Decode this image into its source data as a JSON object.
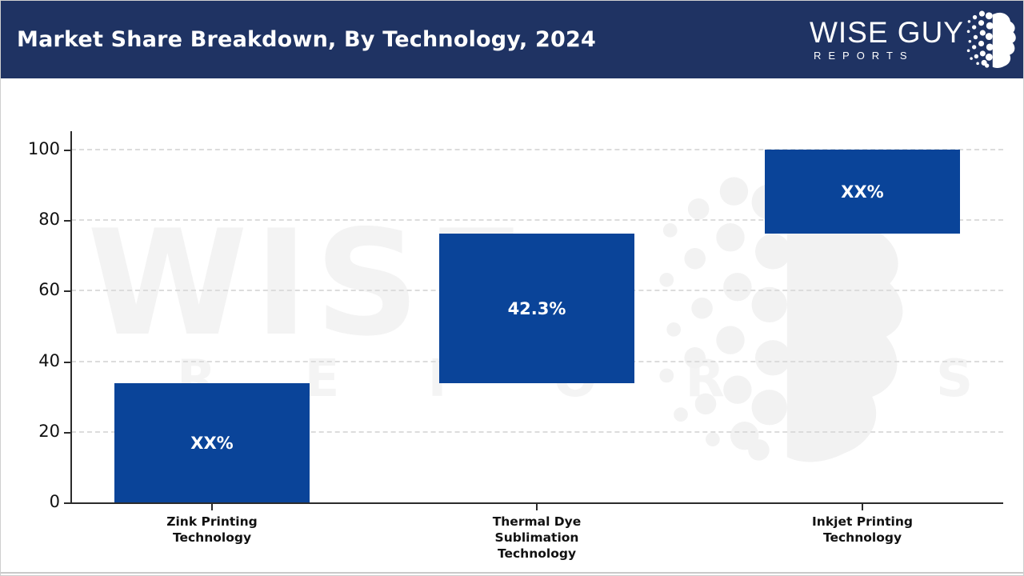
{
  "header": {
    "title": "Market Share Breakdown, By Technology, 2024",
    "logo": {
      "line1": "WISE GUY",
      "line2": "REPORTS"
    }
  },
  "watermark": {
    "word1": "WISE",
    "word2": "R E P O R T S"
  },
  "chart_data": {
    "type": "bar",
    "subtype": "floating-segment (waterfall style)",
    "title": "Market Share Breakdown, By Technology, 2024",
    "categories": [
      "Zink Printing Technology",
      "Thermal Dye Sublimation Technology",
      "Inkjet Printing Technology"
    ],
    "category_lines": [
      [
        "Zink Printing",
        "Technology"
      ],
      [
        "Thermal Dye",
        "Sublimation",
        "Technology"
      ],
      [
        "Inkjet Printing",
        "Technology"
      ]
    ],
    "bars": [
      {
        "category": "Zink Printing Technology",
        "start": 0,
        "end": 33.8,
        "label": "XX%"
      },
      {
        "category": "Thermal Dye Sublimation Technology",
        "start": 33.8,
        "end": 76.1,
        "label": "42.3%"
      },
      {
        "category": "Inkjet Printing Technology",
        "start": 76.1,
        "end": 100,
        "label": "XX%"
      }
    ],
    "ylim": [
      0,
      105
    ],
    "yticks": [
      0,
      20,
      40,
      60,
      80,
      100
    ],
    "xlabel": "",
    "ylabel": "",
    "grid": "horizontal-dashed",
    "legend": "none",
    "bar_color": "#0a4499",
    "bar_label_color": "#ffffff"
  },
  "colors": {
    "header_bg": "#1f3363",
    "bar": "#0a4499",
    "grid": "#dcdcdc",
    "axis": "#2b2b2b",
    "tick_text": "#111111",
    "watermark": "#f3f3f3",
    "title_text": "#ffffff"
  }
}
